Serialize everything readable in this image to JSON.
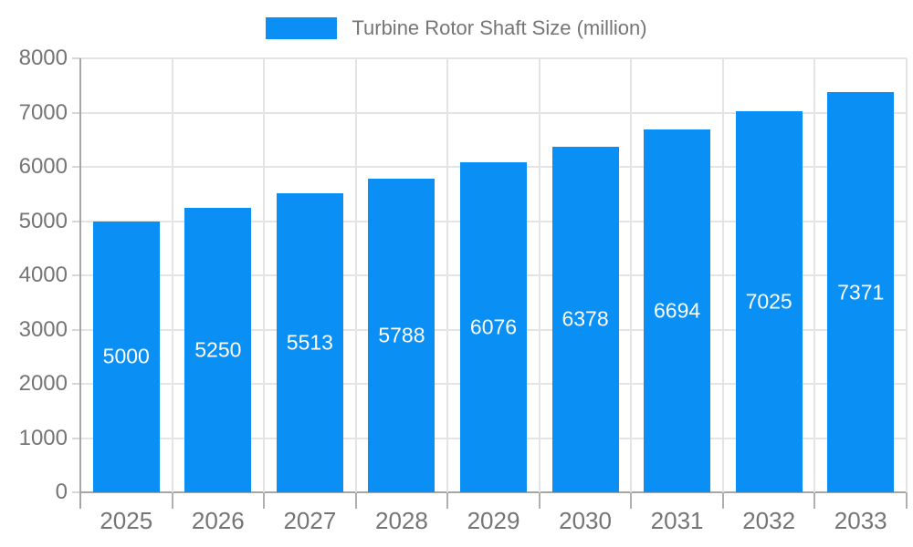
{
  "chart": {
    "legend_label": "Turbine Rotor Shaft Size (million)"
  },
  "chart_data": {
    "type": "bar",
    "title": "Turbine Rotor Shaft Size (million)",
    "categories": [
      "2025",
      "2026",
      "2027",
      "2028",
      "2029",
      "2030",
      "2031",
      "2032",
      "2033"
    ],
    "series": [
      {
        "name": "Turbine Rotor Shaft Size (million)",
        "values": [
          5000,
          5250,
          5513,
          5788,
          6076,
          6378,
          6694,
          7025,
          7371
        ]
      }
    ],
    "bar_value_labels": [
      "5000",
      "5250",
      "5513",
      "5788",
      "6076",
      "6378",
      "6694",
      "7025",
      "7371"
    ],
    "xlabel": "",
    "ylabel": "",
    "ylim": [
      0,
      8000
    ],
    "ytick_step": 1000,
    "ytick_labels": [
      "0",
      "1000",
      "2000",
      "3000",
      "4000",
      "5000",
      "6000",
      "7000",
      "8000"
    ],
    "grid": true,
    "legend_position": "top-center",
    "colors": {
      "bar": "#0a90f5",
      "axis": "#a6a6a6",
      "grid": "#e4e4e4",
      "y_tick": "#d6d6d6",
      "x_tick": "#b0b0b0",
      "text": "#757575",
      "bar_label": "#ffffff",
      "background": "#ffffff"
    }
  }
}
